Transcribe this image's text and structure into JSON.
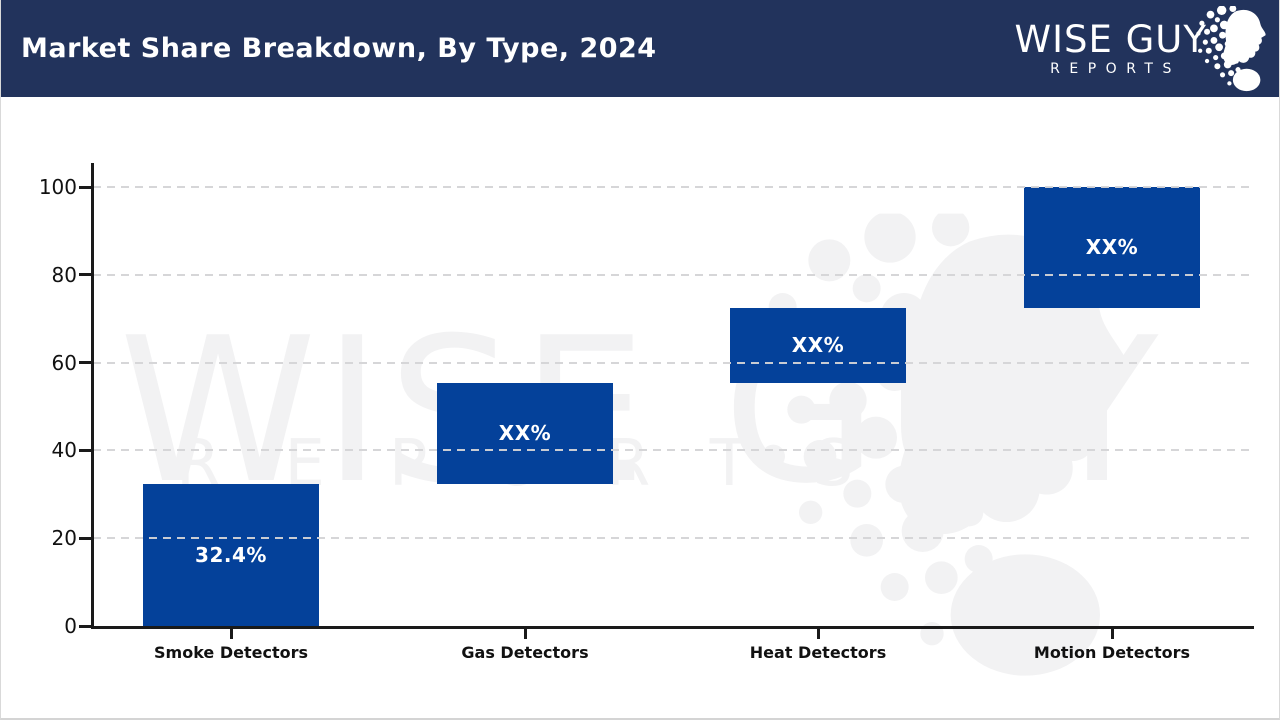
{
  "header": {
    "title": "Market Share Breakdown, By Type, 2024",
    "background": "#22335c",
    "logo": {
      "line1": "WISE GUY",
      "line2": "REPORTS"
    }
  },
  "watermark": {
    "line1": "WISE GUY",
    "line2": "REPORTS"
  },
  "chart_data": {
    "type": "bar",
    "subtype": "waterfall",
    "title": "Market Share Breakdown, By Type, 2024",
    "categories": [
      "Smoke Detectors",
      "Gas Detectors",
      "Heat Detectors",
      "Motion Detectors"
    ],
    "segments": [
      {
        "category": "Smoke Detectors",
        "start": 0,
        "end": 32.4,
        "label": "32.4%"
      },
      {
        "category": "Gas Detectors",
        "start": 32.4,
        "end": 55.4,
        "label": "XX%"
      },
      {
        "category": "Heat Detectors",
        "start": 55.4,
        "end": 72.5,
        "label": "XX%"
      },
      {
        "category": "Motion Detectors",
        "start": 72.5,
        "end": 100,
        "label": "XX%"
      }
    ],
    "ylim": [
      0,
      100
    ],
    "yticks": [
      0,
      20,
      40,
      60,
      80,
      100
    ],
    "grid": "horizontal-dashed",
    "legend": "none",
    "xlabel": "",
    "ylabel": "",
    "bar_color": "#04419a",
    "bar_label_color": "#ffffff",
    "axis_color": "#1a1a1a"
  }
}
